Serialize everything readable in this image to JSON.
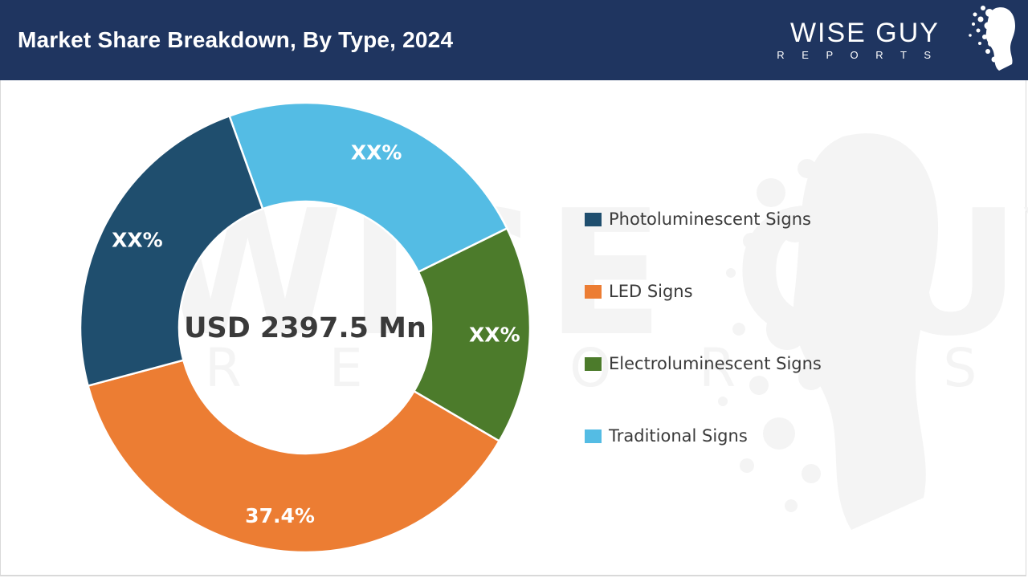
{
  "header": {
    "title": "Market Share Breakdown, By Type, 2024",
    "bg_color": "#1F3560",
    "logo": {
      "line1": "WISE GUY",
      "line2": "R E P O R T S"
    }
  },
  "watermark": {
    "line1": "WISE GUY",
    "line2": "R E P O R T S"
  },
  "chart_data": {
    "type": "donut",
    "title": "Market Share Breakdown, By Type, 2024",
    "center_label": "USD 2397.5 Mn",
    "units": "percent",
    "segments": [
      {
        "name": "Photoluminescent Signs",
        "label": "XX%",
        "value_pct": 23.7,
        "color": "#1F4E6E"
      },
      {
        "name": "LED Signs",
        "label": "37.4%",
        "value_pct": 37.4,
        "color": "#EC7D33"
      },
      {
        "name": "Electroluminescent Signs",
        "label": "XX%",
        "value_pct": 15.7,
        "color": "#4C7B2B"
      },
      {
        "name": "Traditional Signs",
        "label": "XX%",
        "value_pct": 23.2,
        "color": "#54BCE4"
      }
    ],
    "draw_order": [
      3,
      2,
      1,
      0
    ],
    "start_angle_deg": -19.7,
    "direction": "clockwise",
    "legend_position": "right"
  },
  "legend": {
    "items": [
      {
        "label": "Photoluminescent Signs",
        "color": "#1F4E6E"
      },
      {
        "label": "LED Signs",
        "color": "#EC7D33"
      },
      {
        "label": "Electroluminescent Signs",
        "color": "#4C7B2B"
      },
      {
        "label": "Traditional Signs",
        "color": "#54BCE4"
      }
    ]
  },
  "colors": {
    "header_bg": "#1F3560",
    "text_dark": "#3A3A3A",
    "frame_border": "#D9D9D9",
    "watermark": "#F4F4F4",
    "label_text": "#FFFFFF"
  },
  "icons": {
    "logo_face": "logo-face-dots-icon",
    "watermark_face": "watermark-face-dots-icon"
  }
}
